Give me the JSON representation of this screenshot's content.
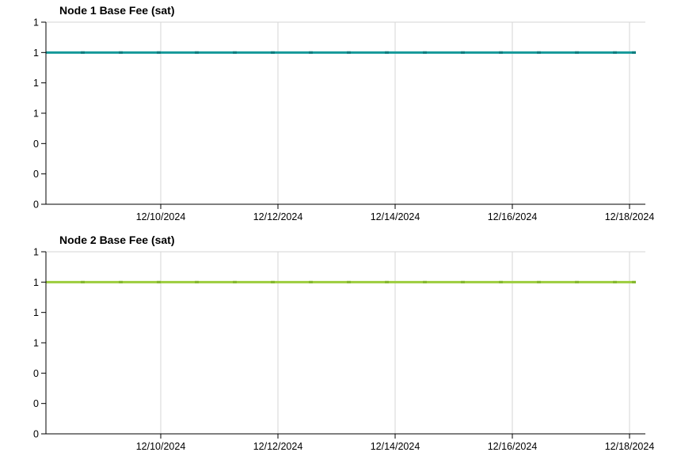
{
  "page": {
    "background_color": "#ffffff",
    "description": "Two stacked time-series charts of node base fees"
  },
  "chart_data": [
    {
      "type": "line",
      "title": "Node 1 Base Fee (sat)",
      "xlabel": "",
      "ylabel": "",
      "x_tick_labels": [
        "12/10/2024",
        "12/12/2024",
        "12/14/2024",
        "12/16/2024",
        "12/18/2024"
      ],
      "y_tick_labels": [
        "1",
        "1",
        "1",
        "1",
        "0",
        "0",
        "0"
      ],
      "y_tick_values": [
        1.2,
        1.0,
        0.8,
        0.6,
        0.4,
        0.2,
        0.0
      ],
      "ylim": [
        0,
        1.2
      ],
      "x_range": [
        "12/08/2024",
        "12/18/2024"
      ],
      "grid": true,
      "legend_position": "none",
      "grid_color": "#d6d6d6",
      "axis_color": "#000000",
      "series": [
        {
          "name": "Node 1 base fee",
          "color": "#15999a",
          "marker_color": "#0c7c7e",
          "constant_value": 1,
          "x": [
            "12/08/2024",
            "12/09/2024",
            "12/10/2024",
            "12/11/2024",
            "12/12/2024",
            "12/13/2024",
            "12/14/2024",
            "12/15/2024",
            "12/16/2024",
            "12/17/2024",
            "12/18/2024"
          ],
          "values": [
            1,
            1,
            1,
            1,
            1,
            1,
            1,
            1,
            1,
            1,
            1
          ]
        }
      ]
    },
    {
      "type": "line",
      "title": "Node 2 Base Fee (sat)",
      "xlabel": "",
      "ylabel": "",
      "x_tick_labels": [
        "12/10/2024",
        "12/12/2024",
        "12/14/2024",
        "12/16/2024",
        "12/18/2024"
      ],
      "y_tick_labels": [
        "1",
        "1",
        "1",
        "1",
        "0",
        "0",
        "0"
      ],
      "y_tick_values": [
        1.2,
        1.0,
        0.8,
        0.6,
        0.4,
        0.2,
        0.0
      ],
      "ylim": [
        0,
        1.2
      ],
      "x_range": [
        "12/08/2024",
        "12/18/2024"
      ],
      "grid": true,
      "legend_position": "none",
      "grid_color": "#d6d6d6",
      "axis_color": "#000000",
      "series": [
        {
          "name": "Node 2 base fee",
          "color": "#9ccd3c",
          "marker_color": "#83b62c",
          "constant_value": 1,
          "x": [
            "12/08/2024",
            "12/09/2024",
            "12/10/2024",
            "12/11/2024",
            "12/12/2024",
            "12/13/2024",
            "12/14/2024",
            "12/15/2024",
            "12/16/2024",
            "12/17/2024",
            "12/18/2024"
          ],
          "values": [
            1,
            1,
            1,
            1,
            1,
            1,
            1,
            1,
            1,
            1,
            1
          ]
        }
      ]
    }
  ]
}
